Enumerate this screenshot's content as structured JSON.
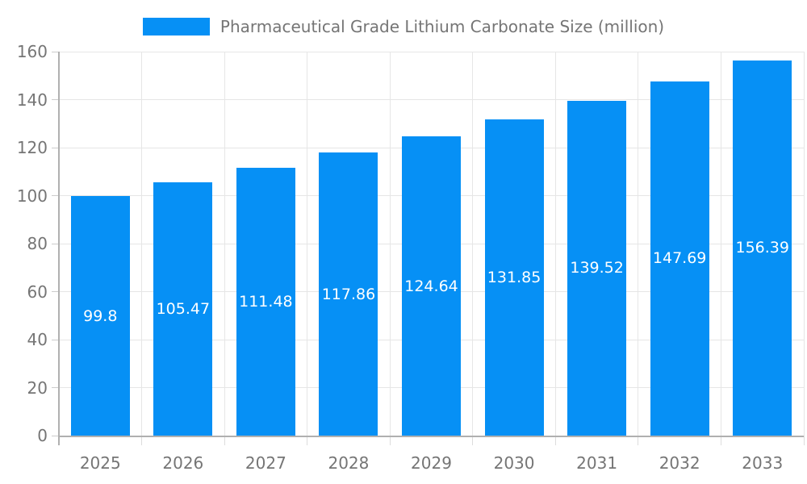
{
  "chart_data": {
    "type": "bar",
    "title": "Pharmaceutical Grade Lithium Carbonate Size (million)",
    "categories": [
      "2025",
      "2026",
      "2027",
      "2028",
      "2029",
      "2030",
      "2031",
      "2032",
      "2033"
    ],
    "values": [
      99.8,
      105.47,
      111.48,
      117.86,
      124.64,
      131.85,
      139.52,
      147.69,
      156.39
    ],
    "series_name": "Pharmaceutical Grade Lithium Carbonate Size (million)",
    "xlabel": "",
    "ylabel": "",
    "ylim": [
      0,
      160
    ],
    "ytick_step": 20,
    "ytick_labels": [
      "0",
      "20",
      "40",
      "60",
      "80",
      "100",
      "120",
      "140",
      "160"
    ],
    "grid": true,
    "legend_position": "top",
    "bar_color": "#0690f5",
    "bar_label_color": "#ffffff",
    "axis_text_color": "#757575",
    "grid_color": "#e6e6e6",
    "axis_line_color": "#b0b0b0"
  }
}
